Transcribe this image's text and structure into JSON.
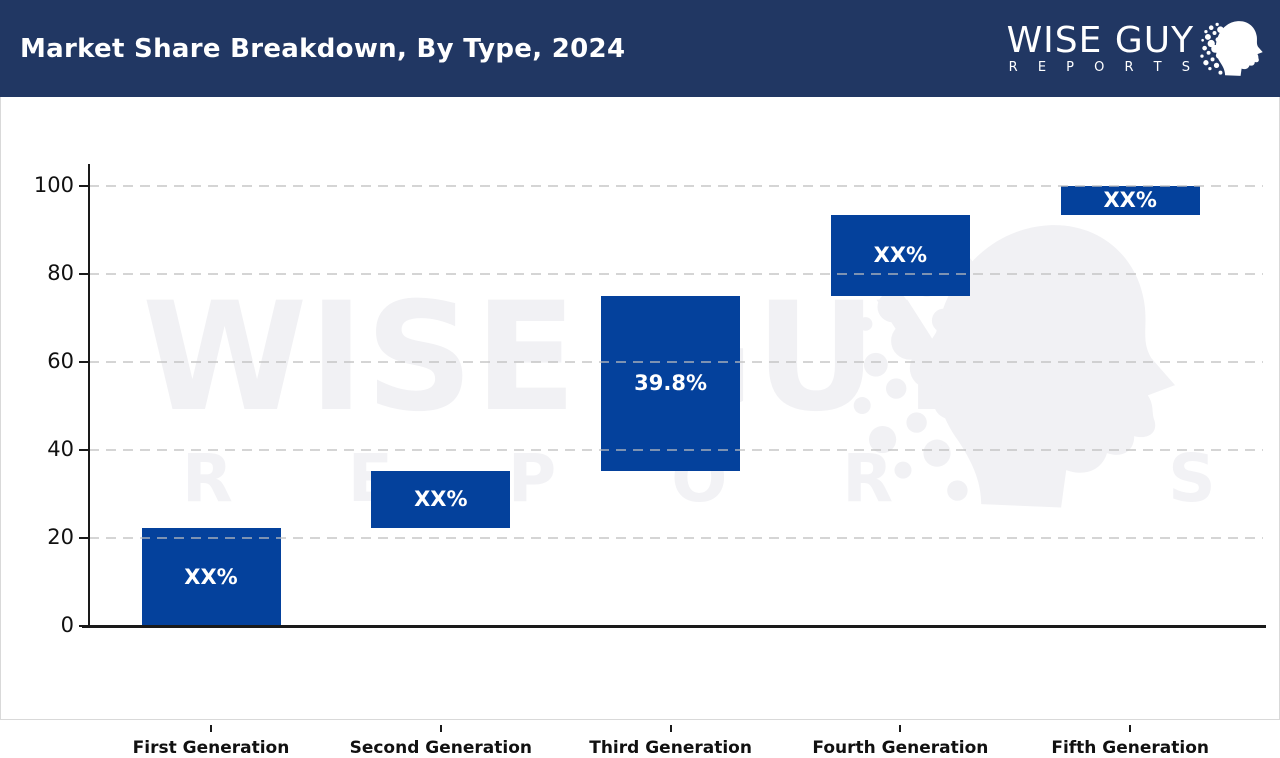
{
  "header": {
    "title": "Market Share Breakdown, By Type, 2024",
    "bg_color": "#213763",
    "logo": {
      "line1": "WISE GUY",
      "line2": "R E P O R T S"
    }
  },
  "watermark": {
    "line1": "WISE GUY",
    "line2": "R E P O R T S"
  },
  "chart_data": {
    "type": "bar",
    "subtype": "waterfall",
    "title": "Market Share Breakdown, By Type, 2024",
    "categories": [
      "First Generation",
      "Second Generation",
      "Third Generation",
      "Fourth Generation",
      "Fifth Generation"
    ],
    "segments": [
      {
        "category": "First Generation",
        "start": 0,
        "end": 22.2,
        "label": "XX%"
      },
      {
        "category": "Second Generation",
        "start": 22.2,
        "end": 35.2,
        "label": "XX%"
      },
      {
        "category": "Third Generation",
        "start": 35.2,
        "end": 75.0,
        "label": "39.8%"
      },
      {
        "category": "Fourth Generation",
        "start": 75.0,
        "end": 93.3,
        "label": "XX%"
      },
      {
        "category": "Fifth Generation",
        "start": 93.3,
        "end": 100.0,
        "label": "XX%"
      }
    ],
    "yticks": [
      0,
      20,
      40,
      60,
      80,
      100
    ],
    "ylim": [
      0,
      104.5
    ],
    "xlabel": "",
    "ylabel": "",
    "grid": true,
    "legend": false,
    "bar_color": "#04419c",
    "bar_label_color": "#ffffff",
    "axis_color": "#1a1a1a",
    "grid_color": "#c9c9c9"
  }
}
